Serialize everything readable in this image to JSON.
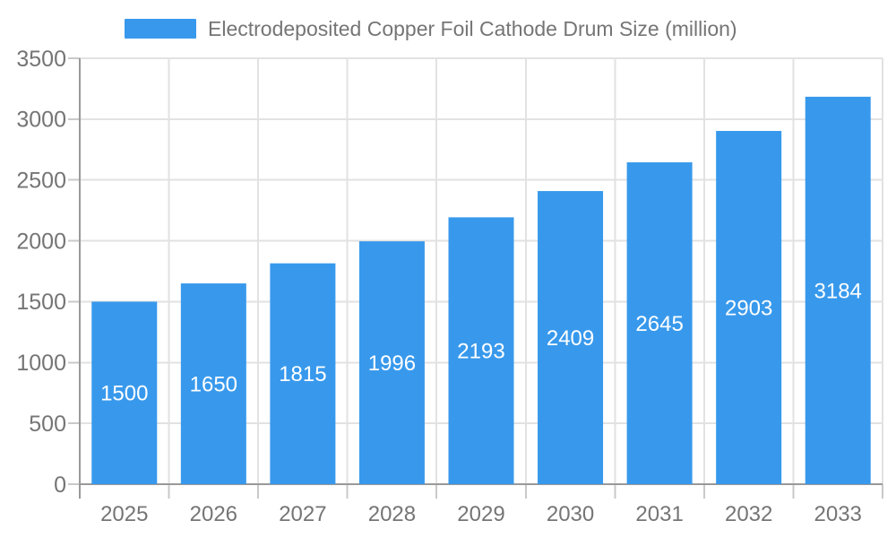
{
  "chart_data": {
    "type": "bar",
    "title": "",
    "legend_position": "top",
    "categories": [
      "2025",
      "2026",
      "2027",
      "2028",
      "2029",
      "2030",
      "2031",
      "2032",
      "2033"
    ],
    "series": [
      {
        "name": "Electrodeposited Copper Foil Cathode Drum Size (million)",
        "values": [
          1500,
          1650,
          1815,
          1996,
          2193,
          2409,
          2645,
          2903,
          3184
        ],
        "color": "#3899ec"
      }
    ],
    "xlabel": "",
    "ylabel": "",
    "ylim": [
      0,
      3500
    ],
    "yticks": [
      0,
      500,
      1000,
      1500,
      2000,
      2500,
      3000,
      3500
    ],
    "grid": true,
    "value_labels_inside_bars": true
  },
  "colors": {
    "bar": "#3899ec",
    "grid": "#e2e2e2",
    "axis": "#999999",
    "tick": "#c9c9c9",
    "axis_label": "#757575",
    "legend_label": "#757575",
    "value_label": "#ffffff",
    "background": "#ffffff"
  }
}
